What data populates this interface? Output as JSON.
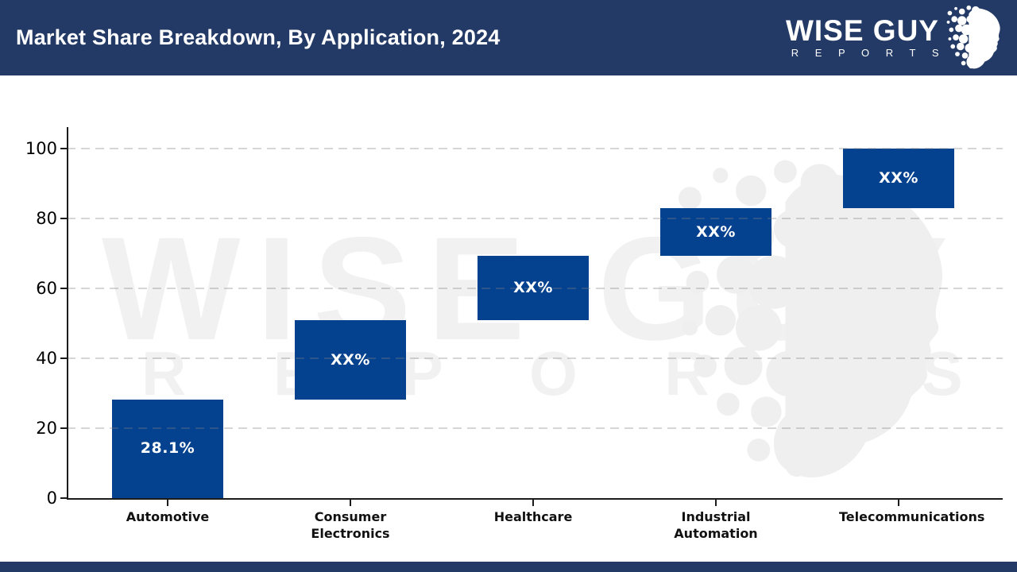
{
  "header": {
    "title": "Market Share Breakdown, By Application, 2024",
    "logo": {
      "line1": "WISE GUY",
      "line2": "R E P O R T S"
    }
  },
  "watermark": {
    "line1": "WISE GUY",
    "line2": "R E P O R T S"
  },
  "chart_data": {
    "type": "bar",
    "subtype": "floating-waterfall",
    "title": "Market Share Breakdown, By Application, 2024",
    "categories": [
      "Automotive",
      "Consumer Electronics",
      "Healthcare",
      "Industrial Automation",
      "Telecommunications"
    ],
    "segments": [
      {
        "category": "Automotive",
        "start": 0,
        "end": 28.1,
        "label": "28.1%"
      },
      {
        "category": "Consumer Electronics",
        "start": 28.1,
        "end": 51.0,
        "label": "XX%"
      },
      {
        "category": "Healthcare",
        "start": 51.0,
        "end": 69.3,
        "label": "XX%"
      },
      {
        "category": "Industrial Automation",
        "start": 69.3,
        "end": 83.0,
        "label": "XX%"
      },
      {
        "category": "Telecommunications",
        "start": 83.0,
        "end": 100.0,
        "label": "XX%"
      }
    ],
    "ylim": [
      0,
      100
    ],
    "yticks": [
      0,
      20,
      40,
      60,
      80,
      100
    ],
    "xlabel": "",
    "ylabel": "",
    "grid": "horizontal-dashed",
    "legend": "none",
    "bar_color": "#04418f",
    "bar_label_color": "#ffffff",
    "axis_color": "#1c1c1c",
    "gridline_color": "#d9d9d9",
    "tick_label_color": "#000000"
  },
  "colors": {
    "header_bg": "#233a66",
    "footer_bg": "#233a66",
    "page_bg": "#ffffff",
    "watermark": "#f1f1f1"
  }
}
